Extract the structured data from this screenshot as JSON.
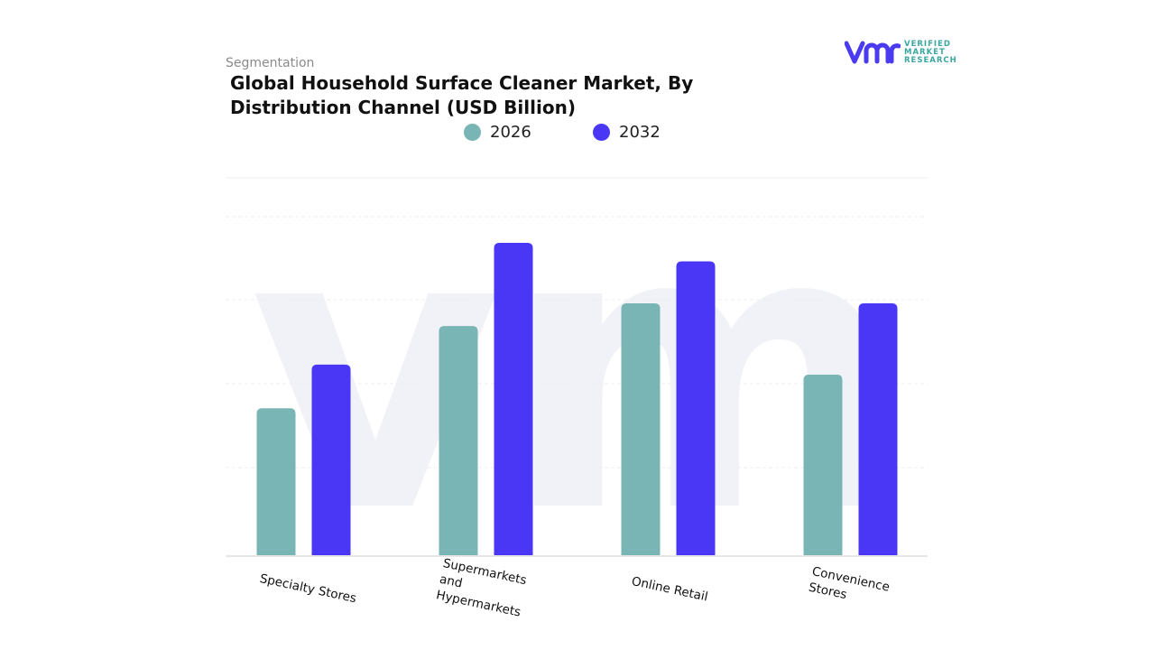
{
  "header": {
    "segment_label": "Segmentation",
    "title": "Global Household Surface Cleaner Market, By Distribution Channel (USD Billion)"
  },
  "logo": {
    "line1": "VERIFIED",
    "line2": "MARKET",
    "line3": "RESEARCH",
    "brand_color": "#4a3bf0"
  },
  "chart_data": {
    "type": "bar",
    "title": "Global Household Surface Cleaner Market, By Distribution Channel (USD Billion)",
    "categories": [
      "Specialty Stores",
      "Supermarkets and Hypermarkets",
      "Online Retail",
      "Convenience Stores"
    ],
    "series": [
      {
        "name": "2026",
        "color": "#7ab5b5",
        "values": [
          1.75,
          2.73,
          3.0,
          2.15
        ]
      },
      {
        "name": "2032",
        "color": "#4a37f5",
        "values": [
          2.27,
          3.72,
          3.5,
          3.0
        ]
      }
    ],
    "ylim": [
      0,
      4.5
    ],
    "grid": true,
    "legend_position": "top-center",
    "xlabel": "",
    "ylabel": ""
  }
}
